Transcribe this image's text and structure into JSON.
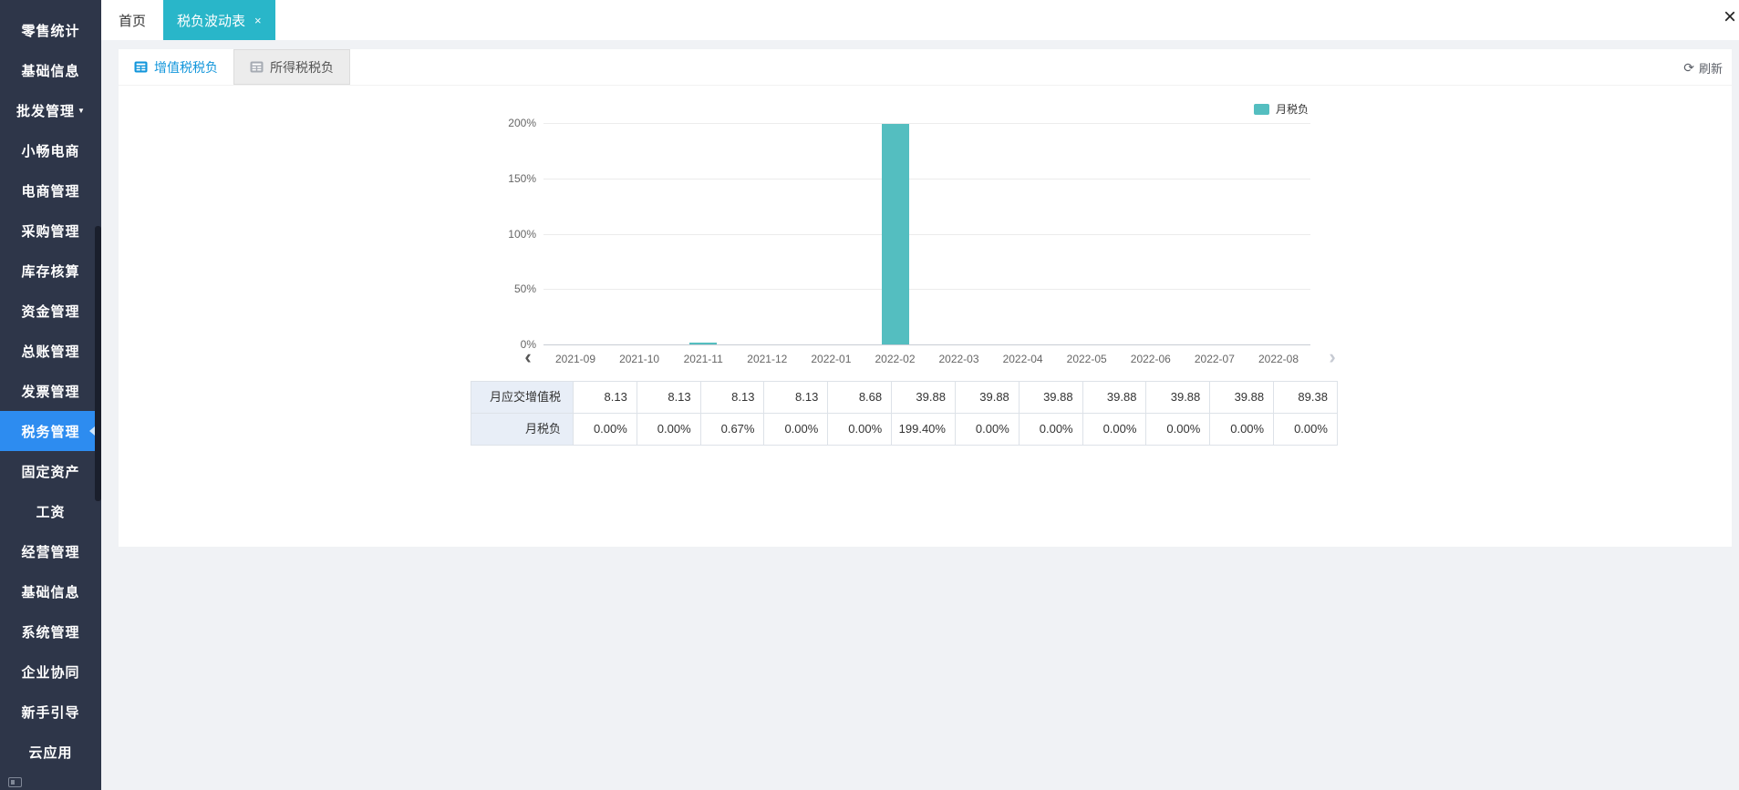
{
  "sidebar": {
    "items": [
      {
        "key": "retail-stats",
        "label": "零售统计"
      },
      {
        "key": "basic-info",
        "label": "基础信息"
      },
      {
        "key": "wholesale-mgmt",
        "label": "批发管理",
        "caret": true
      },
      {
        "key": "xiaochang-ecommerce",
        "label": "小畅电商"
      },
      {
        "key": "ecommerce-mgmt",
        "label": "电商管理"
      },
      {
        "key": "purchase-mgmt",
        "label": "采购管理"
      },
      {
        "key": "inventory-accounting",
        "label": "库存核算"
      },
      {
        "key": "funds-mgmt",
        "label": "资金管理"
      },
      {
        "key": "general-ledger",
        "label": "总账管理"
      },
      {
        "key": "invoice-mgmt",
        "label": "发票管理"
      },
      {
        "key": "tax-mgmt",
        "label": "税务管理",
        "active": true
      },
      {
        "key": "fixed-assets",
        "label": "固定资产"
      },
      {
        "key": "payroll",
        "label": "工资"
      },
      {
        "key": "operations-mgmt",
        "label": "经营管理"
      },
      {
        "key": "basic-info-2",
        "label": "基础信息"
      },
      {
        "key": "system-mgmt",
        "label": "系统管理"
      },
      {
        "key": "enterprise-collab",
        "label": "企业协同"
      },
      {
        "key": "beginner-guide",
        "label": "新手引导"
      },
      {
        "key": "cloud-apps",
        "label": "云应用"
      }
    ]
  },
  "topbar": {
    "home_tab": "首页",
    "active_tab": "税负波动表"
  },
  "panel": {
    "tabs": [
      {
        "label": "增值税税负",
        "active": true
      },
      {
        "label": "所得税税负",
        "active": false
      }
    ],
    "refresh_label": "刷新"
  },
  "chart_data": {
    "type": "bar",
    "title": "",
    "xlabel": "",
    "ylabel": "",
    "categories": [
      "2021-09",
      "2021-10",
      "2021-11",
      "2021-12",
      "2022-01",
      "2022-02",
      "2022-03",
      "2022-04",
      "2022-05",
      "2022-06",
      "2022-07",
      "2022-08"
    ],
    "series": [
      {
        "name": "月税负",
        "values": [
          0,
          0,
          0.67,
          0,
          0,
          199.4,
          0,
          0,
          0,
          0,
          0,
          0
        ],
        "unit": "%"
      }
    ],
    "yticks": [
      "0%",
      "50%",
      "100%",
      "150%",
      "200%"
    ],
    "ylim": [
      0,
      200
    ],
    "grid": true,
    "legend_position": "top-right",
    "bar_color": "#54bec0"
  },
  "table": {
    "rows": [
      {
        "label": "月应交增值税",
        "values": [
          "8.13",
          "8.13",
          "8.13",
          "8.13",
          "8.68",
          "39.88",
          "39.88",
          "39.88",
          "39.88",
          "39.88",
          "39.88",
          "89.38"
        ]
      },
      {
        "label": "月税负",
        "values": [
          "0.00%",
          "0.00%",
          "0.67%",
          "0.00%",
          "0.00%",
          "199.40%",
          "0.00%",
          "0.00%",
          "0.00%",
          "0.00%",
          "0.00%",
          "0.00%"
        ]
      }
    ]
  },
  "icons": {
    "close": "×",
    "refresh": "⟳",
    "caret_down": "▼",
    "prev": "‹",
    "next": "›"
  },
  "colors": {
    "sidebar_bg": "#2e3649",
    "sidebar_active": "#2d8cf0",
    "top_tab": "#29b6c9",
    "bar": "#54bec0",
    "panel_tab_active_text": "#1296db",
    "table_header_bg": "#e8eef7"
  }
}
